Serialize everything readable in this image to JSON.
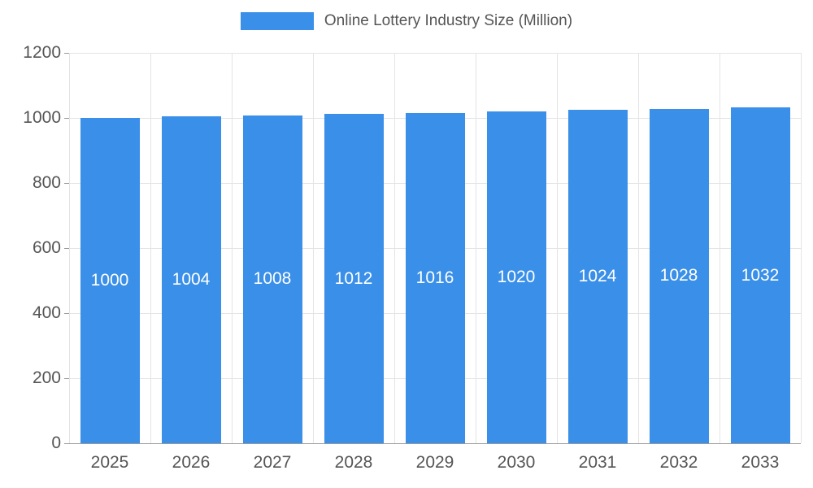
{
  "legend": {
    "label": "Online Lottery Industry Size (Million)"
  },
  "colors": {
    "bar": "#3A8FE8",
    "grid": "#e4e4e4",
    "baseline": "#9a9a9a",
    "axis_text": "#555555",
    "value_label": "#ffffff",
    "background": "#ffffff"
  },
  "chart_data": {
    "type": "bar",
    "title": "Online Lottery Industry Size (Million)",
    "categories": [
      "2025",
      "2026",
      "2027",
      "2028",
      "2029",
      "2030",
      "2031",
      "2032",
      "2033"
    ],
    "values": [
      1000,
      1004,
      1008,
      1012,
      1016,
      1020,
      1024,
      1028,
      1032
    ],
    "xlabel": "",
    "ylabel": "",
    "ylim": [
      0,
      1200
    ],
    "yticks": [
      0,
      200,
      400,
      600,
      800,
      1000,
      1200
    ],
    "grid": true,
    "legend_position": "top",
    "value_labels": "inside-center"
  }
}
